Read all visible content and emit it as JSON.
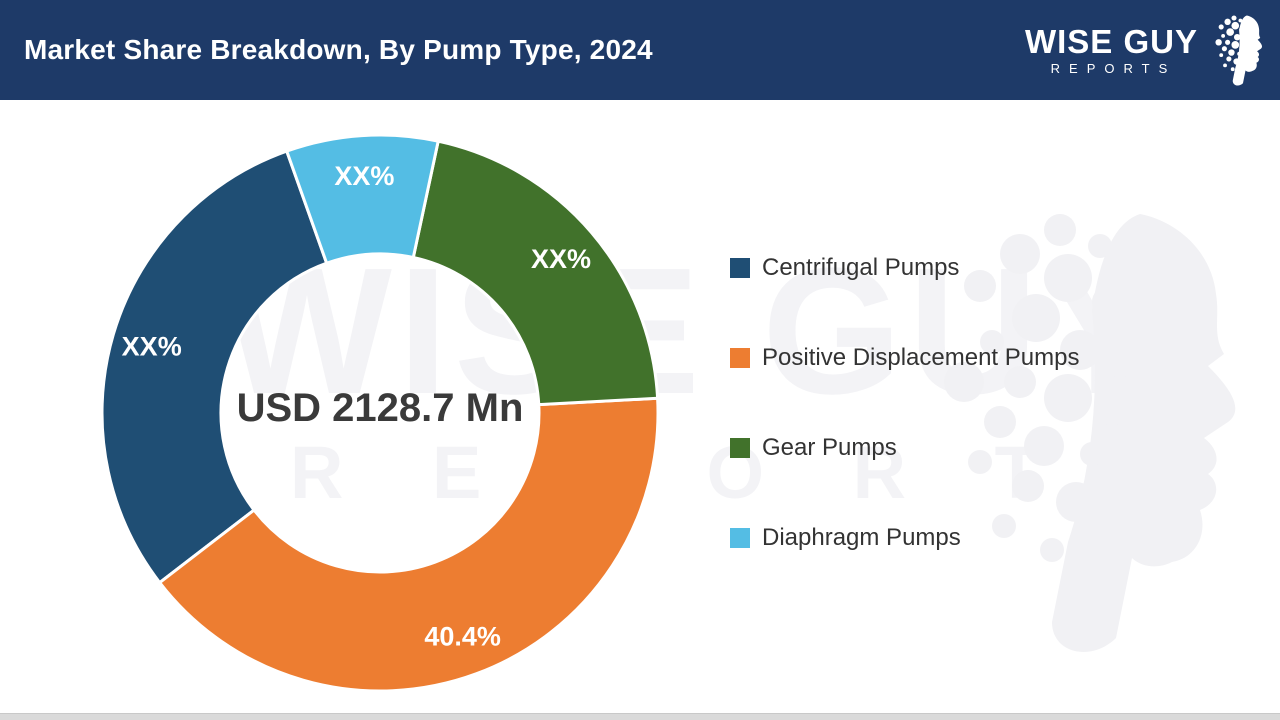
{
  "header": {
    "title": "Market Share Breakdown, By Pump Type, 2024",
    "background_color": "#1e3a68",
    "logo": {
      "name": "WISE GUY",
      "subtitle": "REPORTS"
    }
  },
  "chart_data": {
    "type": "pie",
    "subtype": "donut",
    "title": "Market Share Breakdown, By Pump Type, 2024",
    "center_label": "USD 2128.7 Mn",
    "total_label_value": 2128.7,
    "total_label_unit": "USD Mn",
    "start_angle_deg": 109.6,
    "direction": "counterclockwise",
    "donut_hole_ratio": 0.57,
    "legend_position": "right",
    "segments": [
      {
        "label": "Centrifugal Pumps",
        "display_label": "XX%",
        "share_pct_est": 30.0,
        "color": "#1f4e74"
      },
      {
        "label": "Positive Displacement Pumps",
        "display_label": "40.4%",
        "share_pct_est": 40.4,
        "color": "#ed7d31"
      },
      {
        "label": "Gear Pumps",
        "display_label": "XX%",
        "share_pct_est": 20.8,
        "color": "#41722b"
      },
      {
        "label": "Diaphragm Pumps",
        "display_label": "XX%",
        "share_pct_est": 8.8,
        "color": "#54bde4"
      }
    ]
  },
  "watermark": {
    "line1": "WISE GUY",
    "line2": "R E P O R T S"
  }
}
